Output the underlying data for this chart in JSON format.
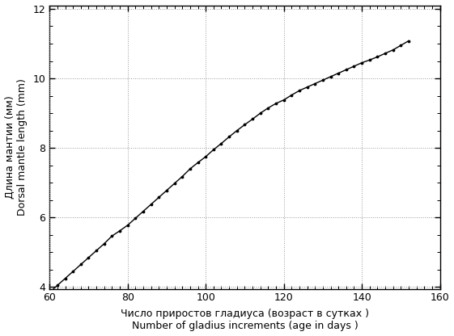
{
  "x_min": 60,
  "x_max": 160,
  "y_min": 4,
  "y_max": 12,
  "x_ticks": [
    60,
    80,
    100,
    120,
    140,
    160
  ],
  "y_ticks": [
    4,
    6,
    8,
    10,
    12
  ],
  "xlabel_ru": "Число приростов гладиуса (возраст в сутках )",
  "xlabel_en": "Number of gladius increments (age in days )",
  "ylabel_ru": "Длина мантии (мм)",
  "ylabel_en": "Dorsal mantle length (mm)",
  "line_color": "#000000",
  "background_color": "#ffffff",
  "grid_color": "#999999",
  "data_x": [
    60,
    62,
    64,
    66,
    68,
    70,
    72,
    74,
    76,
    78,
    80,
    82,
    84,
    86,
    88,
    90,
    92,
    94,
    96,
    98,
    100,
    102,
    104,
    106,
    108,
    110,
    112,
    114,
    116,
    118,
    120,
    122,
    124,
    126,
    128,
    130,
    132,
    134,
    136,
    138,
    140,
    142,
    144,
    146,
    148,
    150,
    152
  ],
  "data_y": [
    3.85,
    4.05,
    4.25,
    4.45,
    4.65,
    4.85,
    5.05,
    5.25,
    5.47,
    5.62,
    5.78,
    5.98,
    6.18,
    6.38,
    6.58,
    6.78,
    6.98,
    7.18,
    7.4,
    7.58,
    7.75,
    7.95,
    8.13,
    8.32,
    8.5,
    8.67,
    8.83,
    9.0,
    9.15,
    9.28,
    9.38,
    9.52,
    9.65,
    9.75,
    9.85,
    9.95,
    10.05,
    10.15,
    10.25,
    10.35,
    10.45,
    10.53,
    10.62,
    10.72,
    10.82,
    10.95,
    11.08
  ]
}
